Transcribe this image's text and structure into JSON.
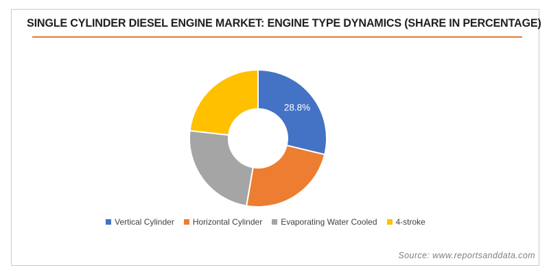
{
  "page": {
    "title": "SINGLE CYLINDER DIESEL ENGINE MARKET: ENGINE TYPE DYNAMICS (SHARE IN PERCENTAGE)",
    "source": "Source: www.reportsanddata.com",
    "accent_rule_color": "#DD7B34",
    "frame_border_color": "#C9C9C9"
  },
  "chart_data": {
    "type": "pie",
    "subtype": "donut",
    "title": "SINGLE CYLINDER DIESEL ENGINE MARKET: ENGINE TYPE DYNAMICS (SHARE IN PERCENTAGE)",
    "unit": "percent",
    "labels": [
      "Vertical Cylinder",
      "Horizontal Cylinder",
      "Evaporating Water Cooled",
      "4-stroke"
    ],
    "values": [
      28.8,
      23.9,
      24.1,
      23.2
    ],
    "colors": [
      "#4472C4",
      "#ED7D31",
      "#A5A5A5",
      "#FFC000"
    ],
    "data_labels": [
      "28.8%",
      "",
      "",
      ""
    ],
    "data_label_color": "#FFFFFF",
    "start_angle_deg": 0,
    "direction": "clockwise",
    "inner_radius_ratio": 0.43,
    "slice_border_color": "#FFFFFF",
    "legend_position": "bottom"
  }
}
